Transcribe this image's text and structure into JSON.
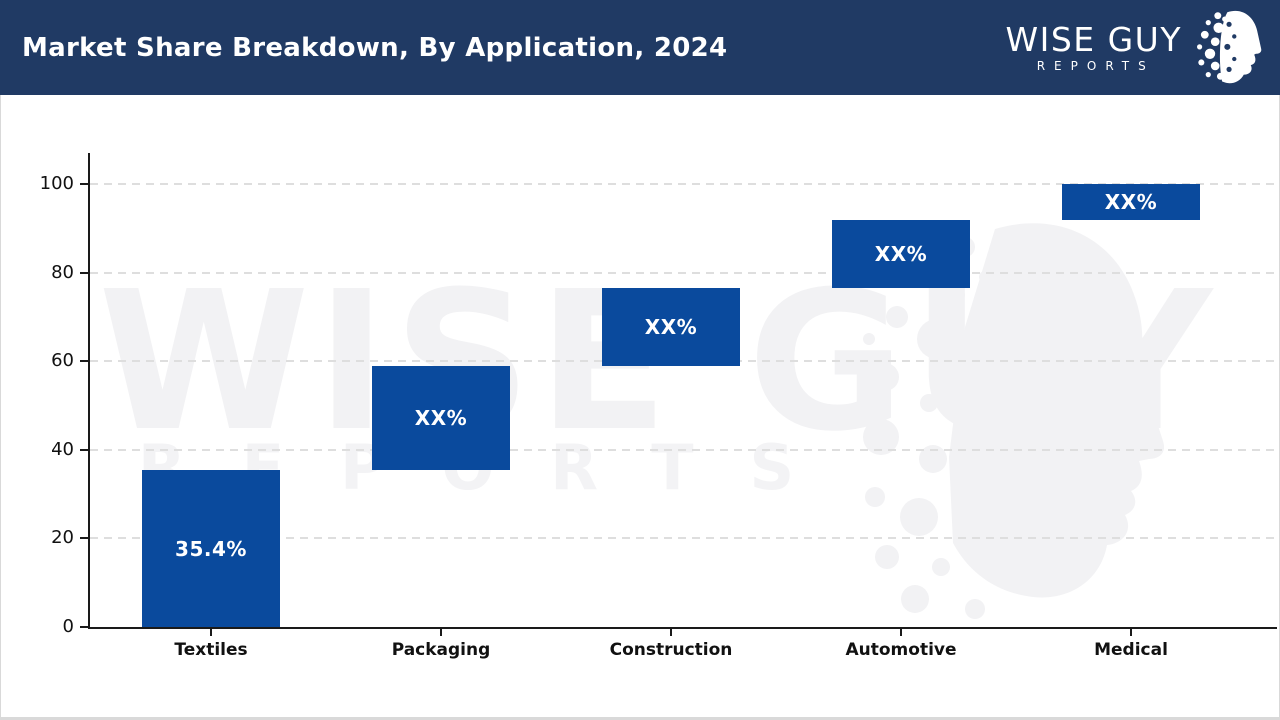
{
  "header": {
    "title": "Market Share Breakdown, By Application, 2024",
    "bg_color": "#203A64",
    "logo": {
      "line1": "WISE GUY",
      "line2": "REPORTS"
    }
  },
  "watermark": {
    "line1": "WISE GUY",
    "line2": "REPORTS"
  },
  "chart_data": {
    "type": "bar",
    "subtype": "waterfall",
    "title": "Market Share Breakdown, By Application, 2024",
    "categories": [
      "Textiles",
      "Packaging",
      "Construction",
      "Automotive",
      "Medical"
    ],
    "values": [
      35.4,
      23.5,
      17.7,
      15.3,
      8.1
    ],
    "cumulative_start": [
      0,
      35.4,
      58.9,
      76.6,
      91.9
    ],
    "cumulative_end": [
      35.4,
      58.9,
      76.6,
      91.9,
      100
    ],
    "bar_labels": [
      "35.4%",
      "XX%",
      "XX%",
      "XX%",
      "XX%"
    ],
    "xlabel": "",
    "ylabel": "",
    "yticks": [
      0,
      20,
      40,
      60,
      80,
      100
    ],
    "ytick_labels": [
      "0",
      "20",
      "40",
      "60",
      "80",
      "100"
    ],
    "ylim": [
      0,
      107
    ],
    "grid": "horizontal-dashed",
    "legend_position": "none",
    "bar_color": "#0A4A9D",
    "bar_label_color": "#FFFFFF"
  }
}
